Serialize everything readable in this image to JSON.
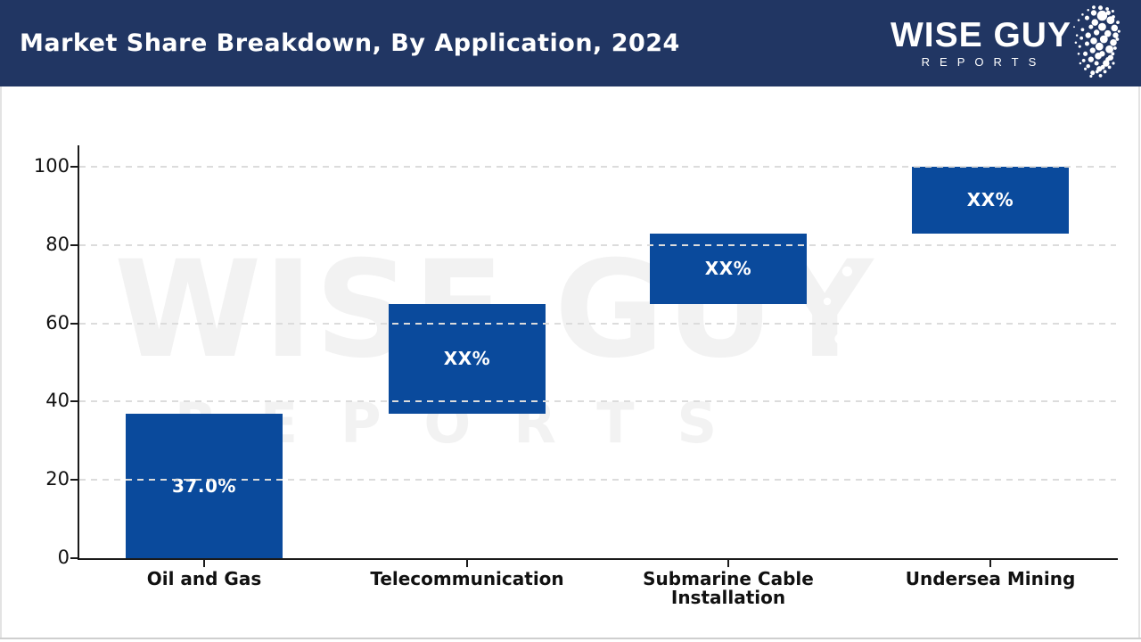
{
  "header": {
    "title": "Market Share Breakdown, By Application, 2024",
    "bg_color": "#213663",
    "logo": {
      "line1": "WISE GUY",
      "line2": "REPORTS"
    }
  },
  "watermark": {
    "line1": "WISE GUY",
    "line2": "REPORTS"
  },
  "colors": {
    "bar": "#0a4a9c",
    "header_bg": "#213663",
    "grid": "#dcdcdc",
    "axis": "#1a1a1a",
    "bar_label": "#ffffff"
  },
  "chart_data": {
    "type": "bar",
    "subtype": "waterfall",
    "title": "Market Share Breakdown, By Application, 2024",
    "categories": [
      "Oil and Gas",
      "Telecommunication",
      "Submarine Cable\nInstallation",
      "Undersea Mining"
    ],
    "segments": [
      {
        "category": "Oil and Gas",
        "start": 0,
        "end": 37,
        "label": "37.0%"
      },
      {
        "category": "Telecommunication",
        "start": 37,
        "end": 65,
        "label": "XX%"
      },
      {
        "category": "Submarine Cable Installation",
        "start": 65,
        "end": 83,
        "label": "XX%"
      },
      {
        "category": "Undersea Mining",
        "start": 83,
        "end": 100,
        "label": "XX%"
      }
    ],
    "yticks": [
      0,
      20,
      40,
      60,
      80,
      100
    ],
    "ylim": [
      0,
      105
    ],
    "xlabel": "",
    "ylabel": "",
    "grid": true,
    "grid_style": "dashed",
    "legend": "none"
  }
}
